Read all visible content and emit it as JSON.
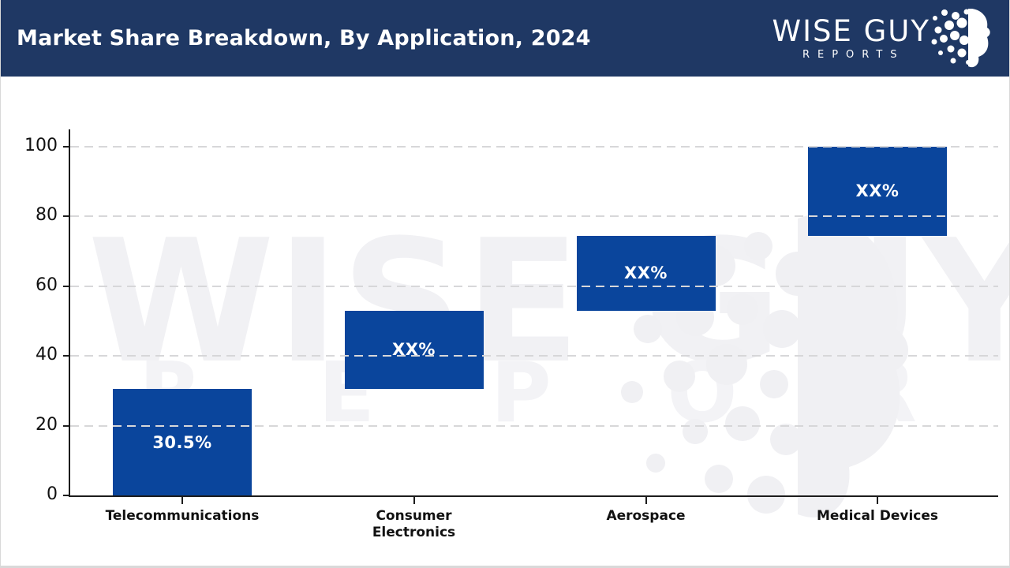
{
  "header": {
    "title": "Market Share Breakdown, By Application, 2024",
    "bg_color": "#1f3864",
    "logo": {
      "line1": "WISE GUY",
      "line2": "REPORTS"
    }
  },
  "watermark": {
    "line1": "WISE GUY",
    "line2": "REPORTS"
  },
  "chart_data": {
    "type": "bar",
    "subtype": "waterfall",
    "title": "Market Share Breakdown, By Application, 2024",
    "xlabel": "",
    "ylabel": "",
    "categories": [
      "Telecommunications",
      "Consumer\nElectronics",
      "Aerospace",
      "Medical Devices"
    ],
    "segments": [
      {
        "category": "Telecommunications",
        "start": 0,
        "end": 30.5,
        "label": "30.5%"
      },
      {
        "category": "Consumer Electronics",
        "start": 30.5,
        "end": 53,
        "label": "XX%"
      },
      {
        "category": "Aerospace",
        "start": 53,
        "end": 74.5,
        "label": "XX%"
      },
      {
        "category": "Medical Devices",
        "start": 74.5,
        "end": 100,
        "label": "XX%"
      }
    ],
    "y_ticks": [
      0,
      20,
      40,
      60,
      80,
      100
    ],
    "ylim": [
      0,
      105
    ],
    "bar_color": "#0a459c",
    "label_color": "#ffffff",
    "grid": true,
    "gridline_style": "dashed",
    "gridline_color": "#d7d7d9",
    "legend": "none"
  }
}
